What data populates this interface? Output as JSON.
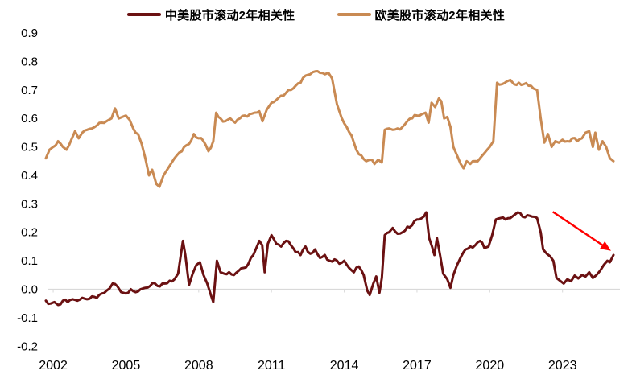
{
  "page": {
    "background": "#ffffff"
  },
  "chart_data": {
    "type": "line",
    "title": "",
    "xlabel": "",
    "ylabel": "",
    "xlim": [
      2001.6,
      2025.3
    ],
    "ylim": [
      -0.2,
      0.9
    ],
    "x_ticks": [
      2002,
      2005,
      2008,
      2011,
      2014,
      2017,
      2020,
      2023
    ],
    "y_ticks": [
      0.9,
      0.8,
      0.7,
      0.6,
      0.5,
      0.4,
      0.3,
      0.2,
      0.1,
      0.0,
      -0.1,
      -0.2
    ],
    "grid": "zero-line-only",
    "zero_line_color": "#D9D9D9",
    "axis_text_color": "#000000",
    "legend_position": "top-center",
    "annotation_arrow": {
      "from": [
        2022.6,
        0.272
      ],
      "to": [
        2025.0,
        0.135
      ],
      "color": "#FF0000"
    },
    "series": [
      {
        "name": "中美股市滚动2年相关性",
        "color": "#6B1112",
        "points": [
          [
            2001.7,
            -0.04
          ],
          [
            2001.9,
            -0.05
          ],
          [
            2002.05,
            -0.045
          ],
          [
            2002.2,
            -0.055
          ],
          [
            2002.4,
            -0.04
          ],
          [
            2002.6,
            -0.045
          ],
          [
            2002.8,
            -0.035
          ],
          [
            2003.0,
            -0.04
          ],
          [
            2003.2,
            -0.03
          ],
          [
            2003.4,
            -0.035
          ],
          [
            2003.6,
            -0.025
          ],
          [
            2003.8,
            -0.03
          ],
          [
            2004.0,
            -0.015
          ],
          [
            2004.2,
            -0.005
          ],
          [
            2004.45,
            0.02
          ],
          [
            2004.65,
            0.01
          ],
          [
            2004.8,
            -0.01
          ],
          [
            2005.0,
            -0.015
          ],
          [
            2005.2,
            0.0
          ],
          [
            2005.4,
            -0.01
          ],
          [
            2005.6,
            0.0
          ],
          [
            2005.8,
            0.005
          ],
          [
            2006.0,
            0.012
          ],
          [
            2006.2,
            0.02
          ],
          [
            2006.4,
            0.01
          ],
          [
            2006.6,
            0.02
          ],
          [
            2006.8,
            0.03
          ],
          [
            2007.0,
            0.035
          ],
          [
            2007.15,
            0.055
          ],
          [
            2007.35,
            0.17
          ],
          [
            2007.45,
            0.12
          ],
          [
            2007.6,
            0.015
          ],
          [
            2007.75,
            0.055
          ],
          [
            2007.9,
            0.085
          ],
          [
            2008.05,
            0.095
          ],
          [
            2008.2,
            0.05
          ],
          [
            2008.35,
            0.02
          ],
          [
            2008.5,
            -0.02
          ],
          [
            2008.6,
            -0.045
          ],
          [
            2008.75,
            0.1
          ],
          [
            2008.9,
            0.06
          ],
          [
            2009.05,
            0.055
          ],
          [
            2009.25,
            0.06
          ],
          [
            2009.45,
            0.05
          ],
          [
            2009.65,
            0.065
          ],
          [
            2009.85,
            0.075
          ],
          [
            2010.05,
            0.09
          ],
          [
            2010.25,
            0.12
          ],
          [
            2010.5,
            0.17
          ],
          [
            2010.62,
            0.155
          ],
          [
            2010.72,
            0.06
          ],
          [
            2010.85,
            0.16
          ],
          [
            2011.0,
            0.19
          ],
          [
            2011.2,
            0.16
          ],
          [
            2011.4,
            0.15
          ],
          [
            2011.6,
            0.17
          ],
          [
            2011.8,
            0.155
          ],
          [
            2012.0,
            0.13
          ],
          [
            2012.2,
            0.12
          ],
          [
            2012.4,
            0.15
          ],
          [
            2012.6,
            0.125
          ],
          [
            2012.8,
            0.14
          ],
          [
            2013.0,
            0.11
          ],
          [
            2013.2,
            0.12
          ],
          [
            2013.4,
            0.1
          ],
          [
            2013.6,
            0.105
          ],
          [
            2013.8,
            0.09
          ],
          [
            2014.0,
            0.1
          ],
          [
            2014.2,
            0.075
          ],
          [
            2014.4,
            0.06
          ],
          [
            2014.6,
            0.08
          ],
          [
            2014.8,
            0.05
          ],
          [
            2014.95,
            -0.005
          ],
          [
            2015.05,
            -0.02
          ],
          [
            2015.2,
            0.02
          ],
          [
            2015.32,
            0.045
          ],
          [
            2015.45,
            -0.012
          ],
          [
            2015.55,
            0.04
          ],
          [
            2015.67,
            0.19
          ],
          [
            2015.85,
            0.2
          ],
          [
            2016.0,
            0.215
          ],
          [
            2016.2,
            0.195
          ],
          [
            2016.4,
            0.2
          ],
          [
            2016.6,
            0.22
          ],
          [
            2016.8,
            0.225
          ],
          [
            2017.0,
            0.245
          ],
          [
            2017.2,
            0.25
          ],
          [
            2017.38,
            0.27
          ],
          [
            2017.5,
            0.18
          ],
          [
            2017.62,
            0.15
          ],
          [
            2017.72,
            0.12
          ],
          [
            2017.82,
            0.18
          ],
          [
            2017.95,
            0.12
          ],
          [
            2018.08,
            0.055
          ],
          [
            2018.25,
            0.035
          ],
          [
            2018.38,
            0.005
          ],
          [
            2018.5,
            0.05
          ],
          [
            2018.65,
            0.085
          ],
          [
            2018.82,
            0.115
          ],
          [
            2019.0,
            0.14
          ],
          [
            2019.2,
            0.15
          ],
          [
            2019.4,
            0.155
          ],
          [
            2019.6,
            0.17
          ],
          [
            2019.78,
            0.145
          ],
          [
            2019.95,
            0.15
          ],
          [
            2020.1,
            0.19
          ],
          [
            2020.25,
            0.245
          ],
          [
            2020.45,
            0.25
          ],
          [
            2020.65,
            0.245
          ],
          [
            2020.85,
            0.25
          ],
          [
            2021.0,
            0.26
          ],
          [
            2021.15,
            0.27
          ],
          [
            2021.35,
            0.255
          ],
          [
            2021.55,
            0.26
          ],
          [
            2021.75,
            0.255
          ],
          [
            2021.95,
            0.25
          ],
          [
            2022.1,
            0.2
          ],
          [
            2022.2,
            0.14
          ],
          [
            2022.35,
            0.125
          ],
          [
            2022.5,
            0.115
          ],
          [
            2022.62,
            0.1
          ],
          [
            2022.75,
            0.04
          ],
          [
            2022.9,
            0.03
          ],
          [
            2023.05,
            0.02
          ],
          [
            2023.2,
            0.035
          ],
          [
            2023.35,
            0.028
          ],
          [
            2023.5,
            0.048
          ],
          [
            2023.65,
            0.038
          ],
          [
            2023.8,
            0.05
          ],
          [
            2023.95,
            0.045
          ],
          [
            2024.1,
            0.06
          ],
          [
            2024.25,
            0.04
          ],
          [
            2024.4,
            0.05
          ],
          [
            2024.55,
            0.065
          ],
          [
            2024.7,
            0.085
          ],
          [
            2024.85,
            0.1
          ],
          [
            2024.95,
            0.095
          ],
          [
            2025.1,
            0.12
          ]
        ]
      },
      {
        "name": "欧美股市滚动2年相关性",
        "color": "#C98A53",
        "points": [
          [
            2001.7,
            0.46
          ],
          [
            2001.85,
            0.49
          ],
          [
            2002.0,
            0.5
          ],
          [
            2002.2,
            0.52
          ],
          [
            2002.4,
            0.5
          ],
          [
            2002.55,
            0.49
          ],
          [
            2002.75,
            0.525
          ],
          [
            2002.9,
            0.555
          ],
          [
            2003.05,
            0.53
          ],
          [
            2003.2,
            0.55
          ],
          [
            2003.4,
            0.56
          ],
          [
            2003.6,
            0.565
          ],
          [
            2003.8,
            0.575
          ],
          [
            2004.0,
            0.585
          ],
          [
            2004.2,
            0.59
          ],
          [
            2004.4,
            0.6
          ],
          [
            2004.55,
            0.635
          ],
          [
            2004.7,
            0.6
          ],
          [
            2004.85,
            0.605
          ],
          [
            2005.0,
            0.61
          ],
          [
            2005.15,
            0.595
          ],
          [
            2005.3,
            0.565
          ],
          [
            2005.5,
            0.545
          ],
          [
            2005.65,
            0.51
          ],
          [
            2005.8,
            0.46
          ],
          [
            2005.95,
            0.4
          ],
          [
            2006.08,
            0.42
          ],
          [
            2006.25,
            0.37
          ],
          [
            2006.38,
            0.36
          ],
          [
            2006.55,
            0.4
          ],
          [
            2006.7,
            0.42
          ],
          [
            2006.85,
            0.44
          ],
          [
            2007.0,
            0.46
          ],
          [
            2007.2,
            0.48
          ],
          [
            2007.4,
            0.5
          ],
          [
            2007.6,
            0.51
          ],
          [
            2007.8,
            0.545
          ],
          [
            2008.0,
            0.53
          ],
          [
            2008.2,
            0.52
          ],
          [
            2008.4,
            0.485
          ],
          [
            2008.6,
            0.52
          ],
          [
            2008.72,
            0.62
          ],
          [
            2008.9,
            0.6
          ],
          [
            2009.1,
            0.59
          ],
          [
            2009.3,
            0.6
          ],
          [
            2009.5,
            0.585
          ],
          [
            2009.7,
            0.6
          ],
          [
            2009.9,
            0.61
          ],
          [
            2010.1,
            0.615
          ],
          [
            2010.3,
            0.62
          ],
          [
            2010.5,
            0.625
          ],
          [
            2010.63,
            0.59
          ],
          [
            2010.8,
            0.63
          ],
          [
            2011.0,
            0.655
          ],
          [
            2011.2,
            0.665
          ],
          [
            2011.4,
            0.68
          ],
          [
            2011.6,
            0.69
          ],
          [
            2011.8,
            0.7
          ],
          [
            2012.0,
            0.715
          ],
          [
            2012.2,
            0.725
          ],
          [
            2012.4,
            0.75
          ],
          [
            2012.6,
            0.755
          ],
          [
            2012.8,
            0.765
          ],
          [
            2013.0,
            0.76
          ],
          [
            2013.2,
            0.755
          ],
          [
            2013.35,
            0.76
          ],
          [
            2013.5,
            0.74
          ],
          [
            2013.7,
            0.65
          ],
          [
            2013.9,
            0.6
          ],
          [
            2014.1,
            0.57
          ],
          [
            2014.3,
            0.54
          ],
          [
            2014.5,
            0.49
          ],
          [
            2014.7,
            0.47
          ],
          [
            2014.9,
            0.45
          ],
          [
            2015.05,
            0.455
          ],
          [
            2015.25,
            0.44
          ],
          [
            2015.4,
            0.455
          ],
          [
            2015.55,
            0.445
          ],
          [
            2015.67,
            0.56
          ],
          [
            2015.85,
            0.565
          ],
          [
            2016.0,
            0.56
          ],
          [
            2016.2,
            0.565
          ],
          [
            2016.4,
            0.57
          ],
          [
            2016.6,
            0.59
          ],
          [
            2016.8,
            0.6
          ],
          [
            2017.0,
            0.61
          ],
          [
            2017.2,
            0.615
          ],
          [
            2017.35,
            0.62
          ],
          [
            2017.48,
            0.585
          ],
          [
            2017.6,
            0.655
          ],
          [
            2017.75,
            0.64
          ],
          [
            2017.9,
            0.67
          ],
          [
            2018.0,
            0.66
          ],
          [
            2018.12,
            0.6
          ],
          [
            2018.25,
            0.605
          ],
          [
            2018.38,
            0.57
          ],
          [
            2018.5,
            0.5
          ],
          [
            2018.65,
            0.47
          ],
          [
            2018.8,
            0.44
          ],
          [
            2018.92,
            0.425
          ],
          [
            2019.05,
            0.45
          ],
          [
            2019.2,
            0.44
          ],
          [
            2019.4,
            0.45
          ],
          [
            2019.6,
            0.46
          ],
          [
            2019.8,
            0.48
          ],
          [
            2020.0,
            0.5
          ],
          [
            2020.15,
            0.52
          ],
          [
            2020.3,
            0.725
          ],
          [
            2020.5,
            0.72
          ],
          [
            2020.7,
            0.73
          ],
          [
            2020.85,
            0.735
          ],
          [
            2021.0,
            0.72
          ],
          [
            2021.2,
            0.725
          ],
          [
            2021.4,
            0.72
          ],
          [
            2021.6,
            0.715
          ],
          [
            2021.8,
            0.705
          ],
          [
            2021.95,
            0.7
          ],
          [
            2022.1,
            0.6
          ],
          [
            2022.25,
            0.515
          ],
          [
            2022.4,
            0.545
          ],
          [
            2022.55,
            0.5
          ],
          [
            2022.7,
            0.52
          ],
          [
            2022.85,
            0.515
          ],
          [
            2023.0,
            0.525
          ],
          [
            2023.2,
            0.52
          ],
          [
            2023.4,
            0.53
          ],
          [
            2023.6,
            0.52
          ],
          [
            2023.8,
            0.53
          ],
          [
            2023.95,
            0.55
          ],
          [
            2024.1,
            0.555
          ],
          [
            2024.25,
            0.5
          ],
          [
            2024.35,
            0.55
          ],
          [
            2024.5,
            0.49
          ],
          [
            2024.65,
            0.52
          ],
          [
            2024.8,
            0.5
          ],
          [
            2024.95,
            0.46
          ],
          [
            2025.1,
            0.45
          ]
        ]
      }
    ]
  }
}
